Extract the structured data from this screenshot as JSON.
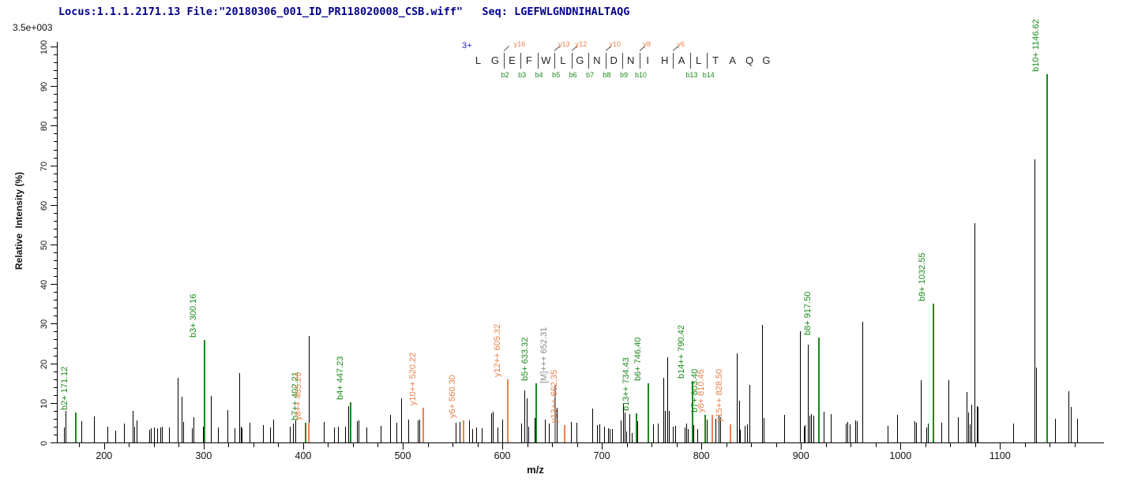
{
  "header": {
    "text": "Locus:1.1.1.2171.13 File:\"20180306_001_ID_PR118020008_CSB.wiff\"   Seq: LGEFWLGNDNIHALTAQG"
  },
  "scale_label": "3.5e+003",
  "y_axis": {
    "title": "Relative  Intensity (%)",
    "tick_step_minor": 2,
    "tick_step_major": 10,
    "tick_labels": [
      "0",
      "10",
      "20",
      "30",
      "40",
      "50",
      "60",
      "70",
      "80",
      "90",
      "100"
    ]
  },
  "x_axis": {
    "title": "m/z",
    "tick_step_minor": 25,
    "tick_labels": [
      "200",
      "300",
      "400",
      "500",
      "600",
      "700",
      "800",
      "900",
      "1000",
      "1100"
    ],
    "range": [
      152.6,
      1195
    ]
  },
  "sequence": {
    "charge": "3+",
    "letters": [
      "L",
      "G",
      "E",
      "F",
      "W",
      "L",
      "G",
      "N",
      "D",
      "N",
      "I",
      "H",
      "A",
      "L",
      "T",
      "A",
      "Q",
      "G"
    ],
    "cleavages": [
      {
        "after": 1,
        "b": "b2",
        "y": "y16",
        "ydx": 13
      },
      {
        "after": 2,
        "b": "b3",
        "y": null
      },
      {
        "after": 3,
        "b": "b4",
        "y": null
      },
      {
        "after": 4,
        "b": "b5",
        "y": "y13",
        "ydx": 5
      },
      {
        "after": 5,
        "b": "b6",
        "y": "y12",
        "ydx": 5
      },
      {
        "after": 6,
        "b": "b7",
        "y": null
      },
      {
        "after": 7,
        "b": "b8",
        "y": "y10",
        "ydx": 5
      },
      {
        "after": 8,
        "b": "b9",
        "y": null
      },
      {
        "after": 9,
        "b": "b10",
        "y": "y8",
        "ydx": 5
      },
      {
        "after": 11,
        "b": null,
        "y": "y6",
        "ydx": 5
      },
      {
        "after": 12,
        "b": "b13",
        "y": null
      },
      {
        "after": 13,
        "b": "b14",
        "y": null
      }
    ]
  },
  "colors": {
    "b_ion": "#1a8a1a",
    "y_ion": "#e8834e",
    "precursor": "#8a8a8a",
    "peak": "#000000",
    "header": "#00008B",
    "charge": "#2525cc"
  },
  "chart_data": {
    "type": "bar",
    "subtype": "ms2-stick-spectrum",
    "title": "MS/MS fragmentation spectrum of LGEFWLGNDNIHALTAQG (3+)",
    "xlabel": "m/z",
    "ylabel": "Relative  Intensity (%)",
    "xlim": [
      152.6,
      1195
    ],
    "ylim": [
      0,
      100
    ],
    "absolute_intensity_max": "3.5e+003",
    "grid": false,
    "labeled_peaks": [
      {
        "label": "b2+ 171.12",
        "mz": 171.12,
        "intensity": 7.5,
        "series": "b"
      },
      {
        "label": "b3+ 300.16",
        "mz": 300.16,
        "intensity": 26,
        "series": "b"
      },
      {
        "label": "b7++ 402.21",
        "mz": 402.21,
        "intensity": 5,
        "series": "b"
      },
      {
        "label": "y8++ 405.26",
        "mz": 405.26,
        "intensity": 5,
        "series": "y"
      },
      {
        "label": "b4+ 447.23",
        "mz": 447.23,
        "intensity": 10.2,
        "series": "b"
      },
      {
        "label": "y10++ 520.22",
        "mz": 520.22,
        "intensity": 8.8,
        "series": "y"
      },
      {
        "label": "y6+ 560.30",
        "mz": 560.3,
        "intensity": 5.5,
        "series": "y"
      },
      {
        "label": "y12++ 605.32",
        "mz": 605.32,
        "intensity": 16,
        "series": "y"
      },
      {
        "label": "b5+ 633.32",
        "mz": 633.32,
        "intensity": 15,
        "series": "b"
      },
      {
        "label": "[M]+++ 652.31",
        "mz": 652.31,
        "intensity": 14.3,
        "series": "M"
      },
      {
        "label": "y13++ 662.35",
        "mz": 662.35,
        "intensity": 4.3,
        "series": "y"
      },
      {
        "label": "b13++ 734.43",
        "mz": 734.43,
        "intensity": 7.3,
        "series": "b"
      },
      {
        "label": "b6+ 746.40",
        "mz": 746.4,
        "intensity": 15,
        "series": "b"
      },
      {
        "label": "b14++ 790.42",
        "mz": 790.42,
        "intensity": 15.5,
        "series": "b"
      },
      {
        "label": "b7+ 803.40",
        "mz": 803.4,
        "intensity": 7,
        "series": "b"
      },
      {
        "label": "y8+ 810.45",
        "mz": 810.45,
        "intensity": 7,
        "series": "y"
      },
      {
        "label": "y15++ 828.50",
        "mz": 828.5,
        "intensity": 4.5,
        "series": "y"
      },
      {
        "label": "b8+ 917.50",
        "mz": 917.5,
        "intensity": 26.5,
        "series": "b"
      },
      {
        "label": "b9+ 1032.55",
        "mz": 1032.55,
        "intensity": 35,
        "series": "b"
      },
      {
        "label": "b10+ 1146.62",
        "mz": 1146.62,
        "intensity": 93,
        "series": "b"
      }
    ],
    "unlabeled_peaks": [
      [
        159.7,
        3.7
      ],
      [
        161.5,
        8
      ],
      [
        177.4,
        5.3
      ],
      [
        189.9,
        6.6
      ],
      [
        203.3,
        3.9
      ],
      [
        211.3,
        2.9
      ],
      [
        219.7,
        4.8
      ],
      [
        228.9,
        8
      ],
      [
        230.5,
        3.9
      ],
      [
        232.9,
        5.6
      ],
      [
        245.6,
        3.1
      ],
      [
        246.9,
        3.6
      ],
      [
        249.9,
        3.8
      ],
      [
        253,
        3.6
      ],
      [
        256.5,
        3.7
      ],
      [
        257.8,
        3.9
      ],
      [
        264.9,
        3.8
      ],
      [
        273.9,
        16.3
      ],
      [
        278.1,
        11.6
      ],
      [
        279.2,
        5.1
      ],
      [
        287.9,
        3.5
      ],
      [
        290,
        6.3
      ],
      [
        299.5,
        4
      ],
      [
        307,
        11.7
      ],
      [
        314.4,
        3.7
      ],
      [
        323.6,
        8.2
      ],
      [
        331.3,
        3.6
      ],
      [
        335.5,
        17.5
      ],
      [
        337.7,
        3.9
      ],
      [
        338.5,
        3.5
      ],
      [
        345.9,
        4.9
      ],
      [
        359.9,
        4.4
      ],
      [
        366.5,
        3.8
      ],
      [
        369.9,
        5.7
      ],
      [
        386.4,
        3.9
      ],
      [
        389.8,
        4.7
      ],
      [
        392.4,
        5.6
      ],
      [
        405.8,
        27
      ],
      [
        420.8,
        5.1
      ],
      [
        430.8,
        3.8
      ],
      [
        435.1,
        3.9
      ],
      [
        442.2,
        3.9
      ],
      [
        445.4,
        9.1
      ],
      [
        454.1,
        5.3
      ],
      [
        455.4,
        5.6
      ],
      [
        463.8,
        3.7
      ],
      [
        477.6,
        4.1
      ],
      [
        487.6,
        6.9
      ],
      [
        493.7,
        4.9
      ],
      [
        498.2,
        11.1
      ],
      [
        505.9,
        5.8
      ],
      [
        515.4,
        5.5
      ],
      [
        517,
        5.7
      ],
      [
        552.9,
        4.9
      ],
      [
        557.4,
        5.1
      ],
      [
        566.6,
        5.5
      ],
      [
        569.5,
        3.3
      ],
      [
        573.8,
        3.8
      ],
      [
        579.6,
        3.6
      ],
      [
        588.6,
        7.3
      ],
      [
        590.4,
        7.7
      ],
      [
        595.2,
        3.7
      ],
      [
        600,
        5.8
      ],
      [
        619.1,
        4.7
      ],
      [
        622.3,
        13.1
      ],
      [
        624.4,
        11.1
      ],
      [
        626,
        4
      ],
      [
        632.8,
        6.1
      ],
      [
        642.9,
        5.8
      ],
      [
        646.8,
        4.7
      ],
      [
        652.9,
        14.6
      ],
      [
        654.5,
        8.8
      ],
      [
        669.2,
        5.1
      ],
      [
        674.5,
        4.9
      ],
      [
        690.4,
        8.5
      ],
      [
        695.5,
        4.3
      ],
      [
        697.5,
        4.6
      ],
      [
        702.3,
        4
      ],
      [
        706,
        3.6
      ],
      [
        707.5,
        3.3
      ],
      [
        710.2,
        3.4
      ],
      [
        719,
        5.6
      ],
      [
        721.5,
        9.8
      ],
      [
        723,
        7.5
      ],
      [
        724.7,
        2.7
      ],
      [
        728,
        7.1
      ],
      [
        730,
        2.5
      ],
      [
        735.9,
        5.3
      ],
      [
        751.2,
        4.5
      ],
      [
        756,
        4.7
      ],
      [
        761.5,
        16.3
      ],
      [
        763.5,
        8
      ],
      [
        765.8,
        21.5
      ],
      [
        767.5,
        7.9
      ],
      [
        771.1,
        3.9
      ],
      [
        773.7,
        4.1
      ],
      [
        783,
        3.8
      ],
      [
        785,
        4.7
      ],
      [
        786.5,
        3.3
      ],
      [
        791.9,
        4.3
      ],
      [
        796.2,
        3.3
      ],
      [
        805.5,
        5.8
      ],
      [
        814.2,
        5.9
      ],
      [
        817.4,
        6.8
      ],
      [
        819,
        6.3
      ],
      [
        835.9,
        22.6
      ],
      [
        837.5,
        10.5
      ],
      [
        838.8,
        3.1
      ],
      [
        843.8,
        4.1
      ],
      [
        845.7,
        4.5
      ],
      [
        848.5,
        14.6
      ],
      [
        861,
        29.6
      ],
      [
        862.8,
        6.1
      ],
      [
        883,
        7
      ],
      [
        898.7,
        28.1
      ],
      [
        902.7,
        4
      ],
      [
        904,
        4.3
      ],
      [
        906.6,
        24.8
      ],
      [
        908.5,
        6.8
      ],
      [
        910.3,
        7.1
      ],
      [
        912.5,
        6.7
      ],
      [
        917.2,
        5.9
      ],
      [
        922.6,
        7.7
      ],
      [
        930.2,
        7.1
      ],
      [
        945,
        4.8
      ],
      [
        946.5,
        5.1
      ],
      [
        948.6,
        4.5
      ],
      [
        954.2,
        5.6
      ],
      [
        955.8,
        5.3
      ],
      [
        962,
        30.5
      ],
      [
        987,
        4.1
      ],
      [
        996.6,
        6.9
      ],
      [
        1014.3,
        5.3
      ],
      [
        1015.8,
        4.9
      ],
      [
        1020.4,
        15.8
      ],
      [
        1026.2,
        3.8
      ],
      [
        1027.8,
        4.7
      ],
      [
        1040.8,
        4.9
      ],
      [
        1048.2,
        15.8
      ],
      [
        1058,
        6.3
      ],
      [
        1066.4,
        12.8
      ],
      [
        1068,
        7.5
      ],
      [
        1069.9,
        4.5
      ],
      [
        1071.5,
        9.5
      ],
      [
        1074.6,
        55.3
      ],
      [
        1076.3,
        9.1
      ],
      [
        1077.8,
        8.9
      ],
      [
        1113,
        4.7
      ],
      [
        1134.8,
        71.5
      ],
      [
        1136.5,
        19
      ],
      [
        1147.5,
        17
      ],
      [
        1155.5,
        6
      ],
      [
        1168.5,
        13
      ],
      [
        1171,
        9
      ],
      [
        1177.5,
        6
      ]
    ]
  }
}
